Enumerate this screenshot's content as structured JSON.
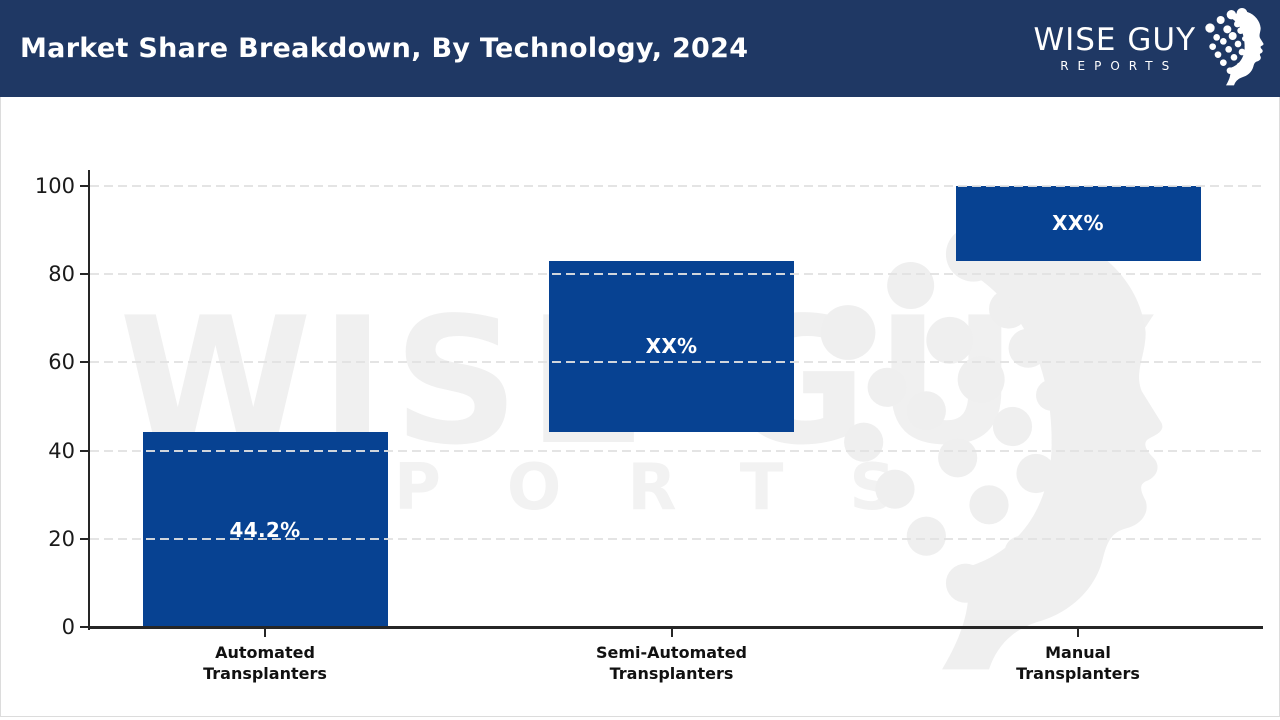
{
  "header": {
    "title": "Market Share Breakdown, By Technology, 2024"
  },
  "logo": {
    "name": "WISE GUY",
    "sub": "REPORTS",
    "icon": "dotted-face-profile"
  },
  "watermark": {
    "line1": "WISE GUY",
    "line2": "REPORTS"
  },
  "chart_data": {
    "type": "bar",
    "subtype": "floating-waterfall-segments",
    "title": "Market Share Breakdown, By Technology, 2024",
    "categories": [
      [
        "Automated",
        "Transplanters"
      ],
      [
        "Semi-Automated",
        "Transplanters"
      ],
      [
        "Manual",
        "Transplanters"
      ]
    ],
    "segments": [
      {
        "category": "Automated Transplanters",
        "start": 0,
        "end": 44.2,
        "label": "44.2%"
      },
      {
        "category": "Semi-Automated Transplanters",
        "start": 44.2,
        "end": 83.1,
        "label": "XX%"
      },
      {
        "category": "Manual Transplanters",
        "start": 83.1,
        "end": 100,
        "label": "XX%"
      }
    ],
    "xlabel": "",
    "ylabel": "",
    "ylim": [
      0,
      100
    ],
    "yticks": [
      0,
      20,
      40,
      60,
      80,
      100
    ],
    "grid": {
      "style": "dashed",
      "lines": [
        20,
        40,
        60,
        80,
        100
      ]
    },
    "legend": null,
    "colors": {
      "bar": "#074292",
      "header_bg": "#1F3864",
      "axis": "#262626",
      "bar_label": "#ffffff",
      "watermark": "#f0f0f0"
    }
  }
}
